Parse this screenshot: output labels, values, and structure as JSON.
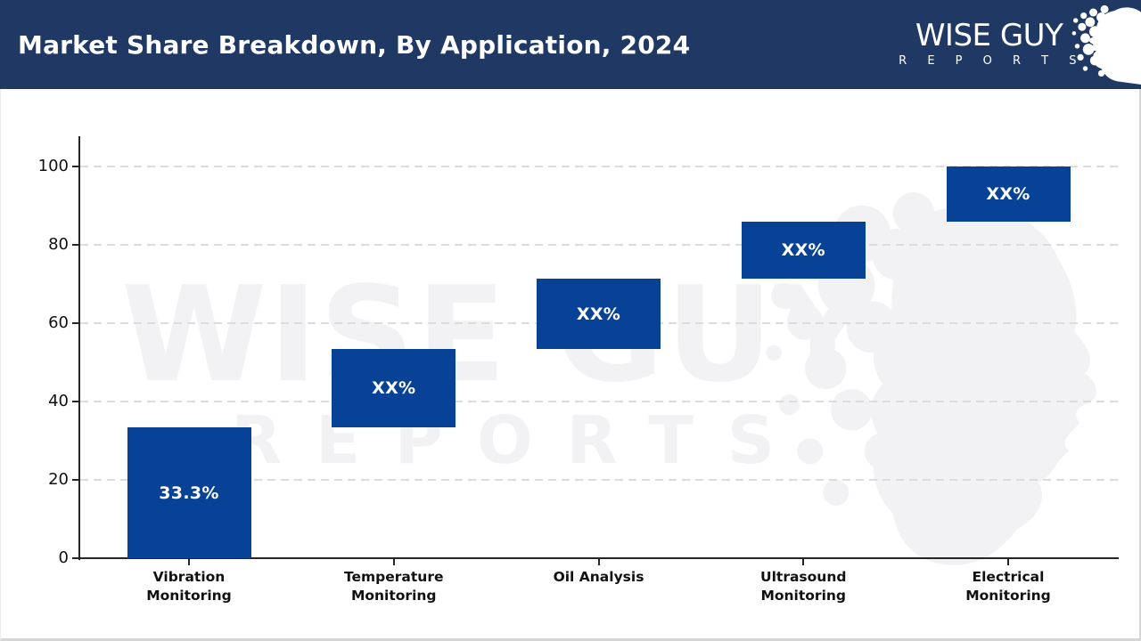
{
  "header": {
    "title": "Market Share Breakdown, By Application, 2024",
    "logo": {
      "line1": "WISE GUY",
      "line2": "R E P O R T S"
    }
  },
  "watermark": {
    "line1": "WISE GUY",
    "line2": "REPORTS"
  },
  "colors": {
    "header_bg": "#1f3864",
    "bar": "#084297",
    "grid": "#dcdcdc",
    "axis": "#262626",
    "bar_label_text": "#ffffff",
    "watermark": "#f2f2f4"
  },
  "chart_data": {
    "type": "bar",
    "subtype": "waterfall",
    "title": "Market Share Breakdown, By Application, 2024",
    "categories": [
      "Vibration Monitoring",
      "Temperature Monitoring",
      "Oil Analysis",
      "Ultrasound Monitoring",
      "Electrical Monitoring"
    ],
    "segments": [
      {
        "category": "Vibration Monitoring",
        "label": "33.3%",
        "start": 0,
        "end": 33.3
      },
      {
        "category": "Temperature Monitoring",
        "label": "XX%",
        "start": 33.3,
        "end": 53.3
      },
      {
        "category": "Oil Analysis",
        "label": "XX%",
        "start": 53.3,
        "end": 71.3
      },
      {
        "category": "Ultrasound Monitoring",
        "label": "XX%",
        "start": 71.3,
        "end": 86.0
      },
      {
        "category": "Electrical Monitoring",
        "label": "XX%",
        "start": 86.0,
        "end": 100.0
      }
    ],
    "xlabel": "",
    "ylabel": "",
    "ylim": [
      0,
      100
    ],
    "yticks": [
      0,
      20,
      40,
      60,
      80,
      100
    ],
    "grid": "horizontal-dashed",
    "legend": "none"
  }
}
